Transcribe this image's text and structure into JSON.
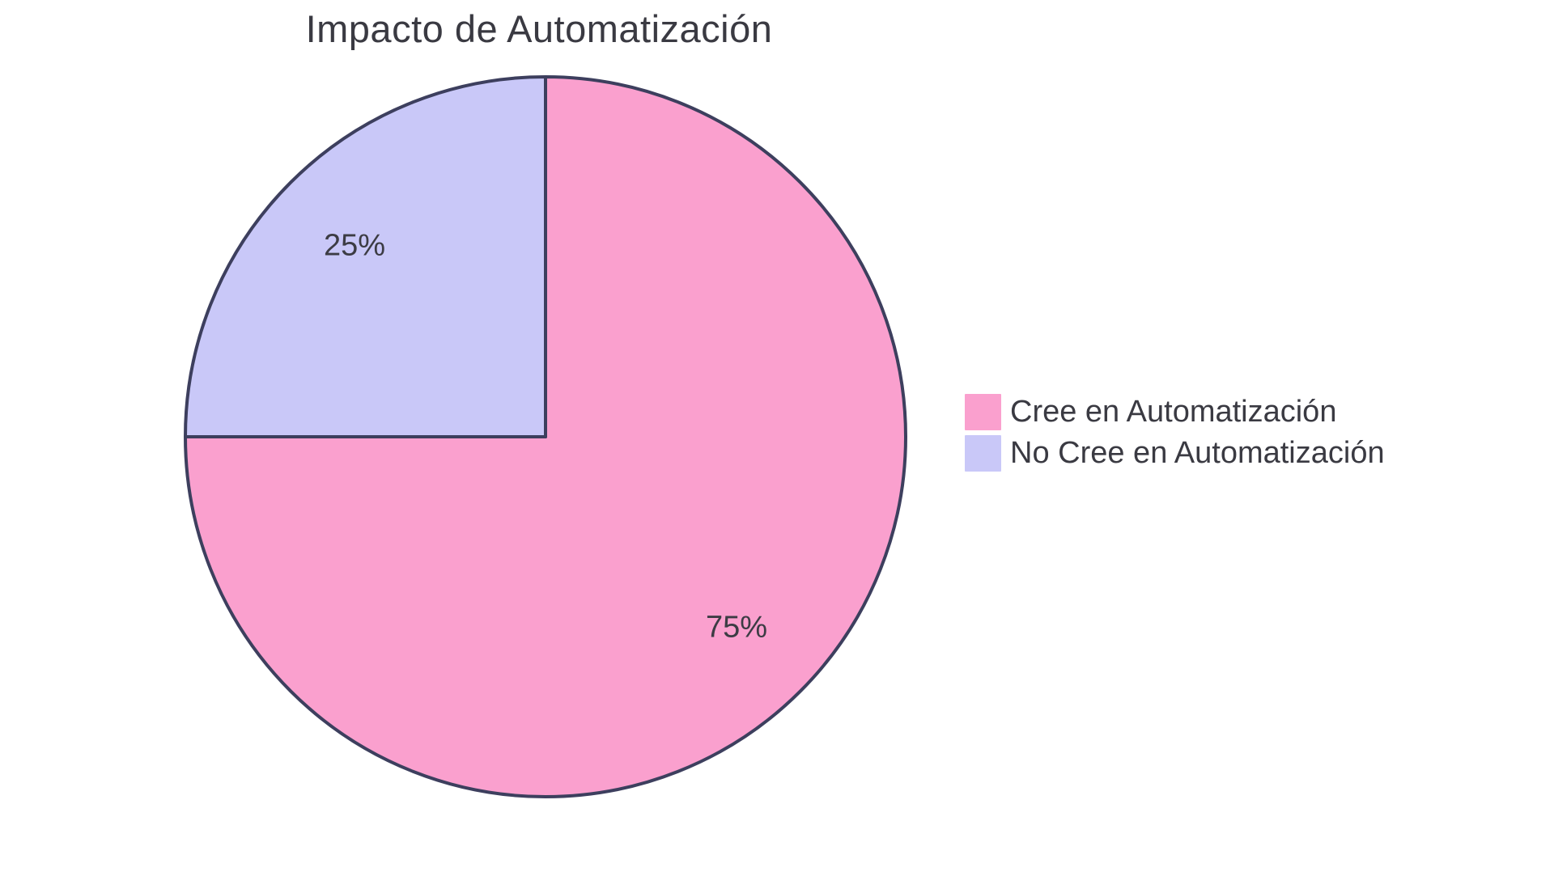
{
  "chart_data": {
    "type": "pie",
    "title": "Impacto de Automatización",
    "labels": [
      "Cree en Automatización",
      "No Cree en Automatización"
    ],
    "values": [
      75,
      25
    ],
    "percent_labels": [
      "75%",
      "25%"
    ],
    "colors": [
      "#FAA0CE",
      "#C9C8F8"
    ],
    "stroke_color": "#3D3F5E",
    "stroke_width": 4,
    "text_color": "#3A3A42",
    "background": "#FFFFFF",
    "legend_position": "right",
    "start_angle": "12 o'clock",
    "direction": "clockwise"
  }
}
